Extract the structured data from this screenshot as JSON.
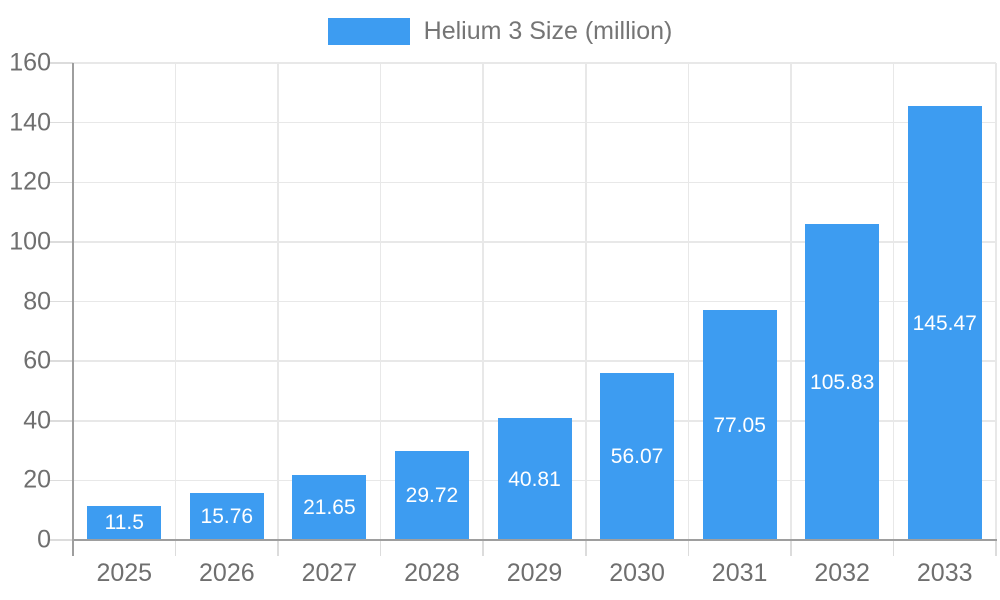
{
  "chart_data": {
    "type": "bar",
    "title": "",
    "legend": "Helium 3 Size (million)",
    "categories": [
      "2025",
      "2026",
      "2027",
      "2028",
      "2029",
      "2030",
      "2031",
      "2032",
      "2033"
    ],
    "series": [
      {
        "name": "Helium 3 Size (million)",
        "values": [
          11.5,
          15.76,
          21.65,
          29.72,
          40.81,
          56.07,
          77.05,
          105.83,
          145.47
        ]
      }
    ],
    "value_labels": [
      "11.5",
      "15.76",
      "21.65",
      "29.72",
      "40.81",
      "56.07",
      "77.05",
      "105.83",
      "145.47"
    ],
    "xlabel": "",
    "ylabel": "",
    "ylim": [
      0,
      160
    ],
    "yticks": [
      0,
      20,
      40,
      60,
      80,
      100,
      120,
      140,
      160
    ],
    "grid": true,
    "legend_position": "top"
  },
  "colors": {
    "background": "#FFFFFF",
    "bar": "#3D9CF1",
    "bar_label": "#FFFFFF",
    "axis_line": "#9E9E9E",
    "gridline": "#E8E8E8",
    "tick": "#DCDCDC",
    "axis_text": "#6F6F6F",
    "legend_text": "#757575"
  }
}
